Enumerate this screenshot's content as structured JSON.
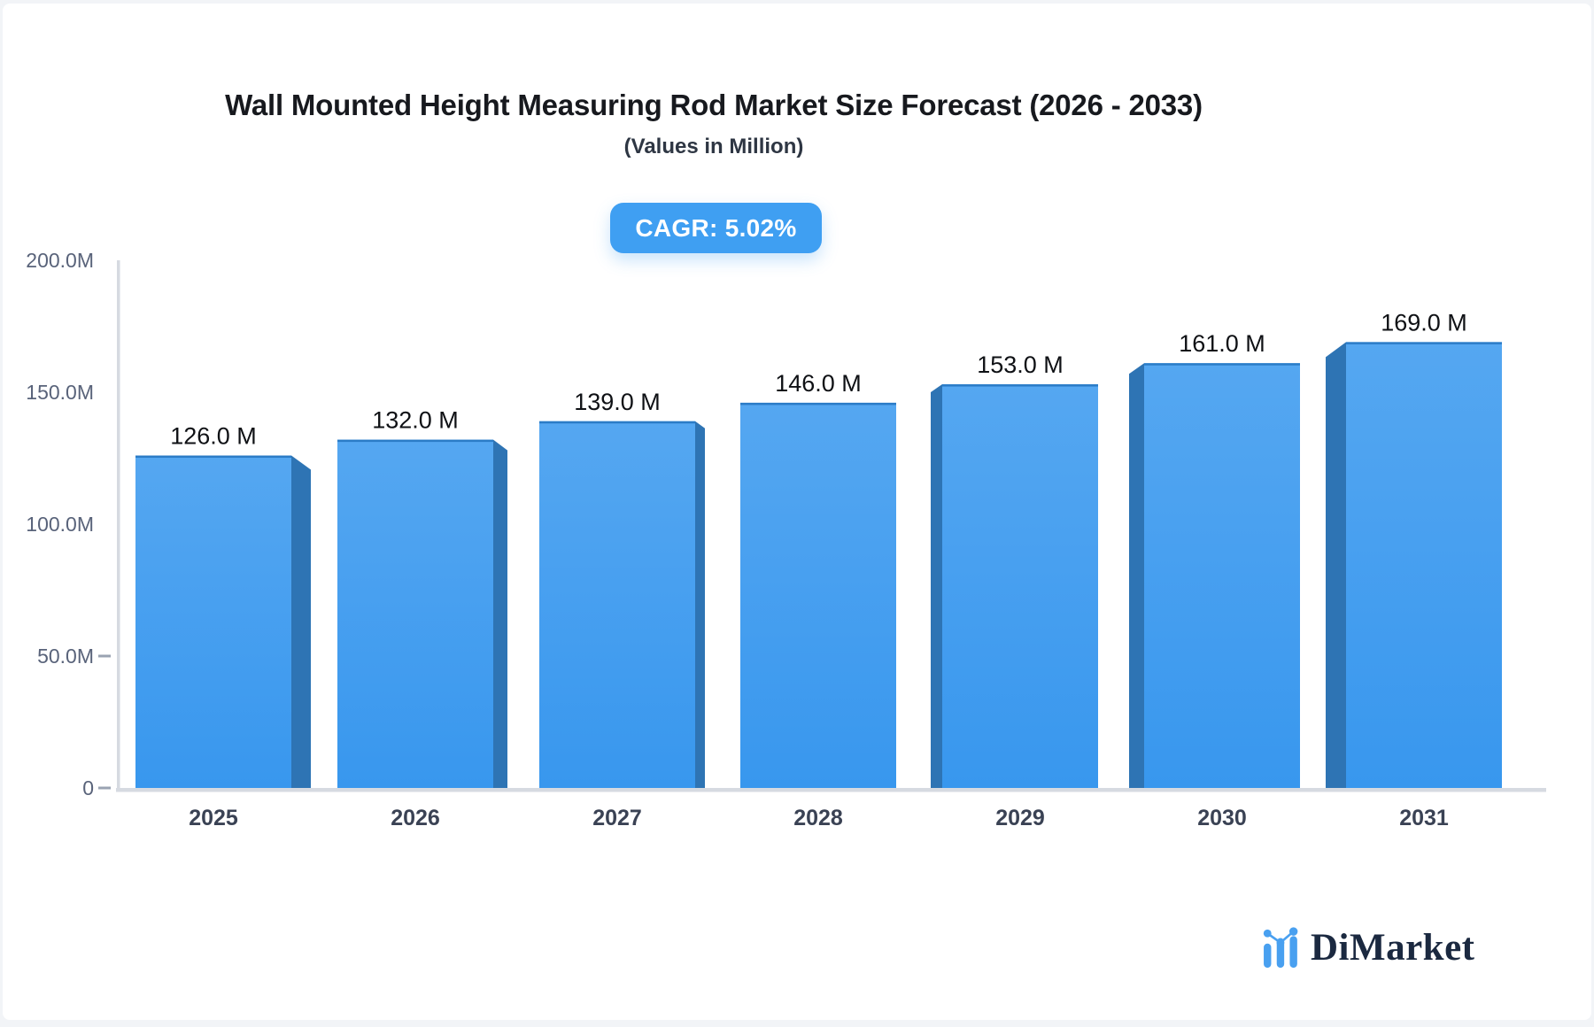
{
  "header": {
    "title": "Wall Mounted Height Measuring Rod Market Size Forecast (2026 - 2033)",
    "subtitle": "(Values in Million)"
  },
  "badge": {
    "label": "CAGR: 5.02%",
    "background": "#3f9ff2",
    "text_color": "#ffffff"
  },
  "chart_data": {
    "type": "bar",
    "title": "Wall Mounted Height Measuring Rod Market Size Forecast (2026 - 2033)",
    "subtitle": "(Values in Million)",
    "xlabel": "",
    "ylabel": "",
    "categories": [
      "2025",
      "2026",
      "2027",
      "2028",
      "2029",
      "2030",
      "2031"
    ],
    "values": [
      126,
      132,
      139,
      146,
      153,
      161,
      169
    ],
    "value_labels": [
      "126.0 M",
      "132.0 M",
      "139.0 M",
      "146.0 M",
      "153.0 M",
      "161.0 M",
      "169.0 M"
    ],
    "ylim": [
      0,
      200
    ],
    "ytick_values": [
      0,
      50,
      100,
      150,
      200
    ],
    "ytick_labels": [
      "0",
      "50.0M",
      "100.0M",
      "150.0M",
      "200.0M"
    ],
    "tick_marks_at": [
      0,
      50
    ],
    "grid": false,
    "legend": "none",
    "bar_depths": [
      22,
      16,
      11,
      0,
      13,
      17,
      23
    ],
    "bar_front_top_color": "#55a7f1",
    "bar_front_bottom_color": "#3897ee",
    "bar_side_color": "#2e74b4",
    "bar_top_edge_color": "#2b7cc7",
    "axis_color": "#d6dae1",
    "tick_dash_color": "#9aa3b2",
    "tick_label_color": "#59637a",
    "value_label_color": "#0f1115",
    "category_label_color": "#3a4254"
  },
  "footer_logo": {
    "text": "DiMarket",
    "icon": "bar-line-chart-icon",
    "icon_color": "#49a0f0",
    "text_color": "#1b2940"
  }
}
